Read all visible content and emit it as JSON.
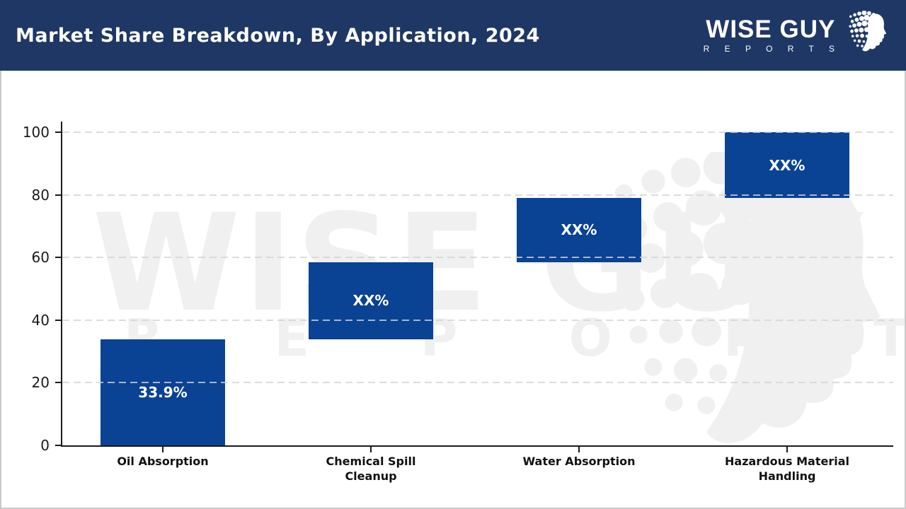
{
  "header": {
    "title": "Market Share Breakdown, By Application, 2024",
    "logo": {
      "line1": "WISE GUY",
      "line2": "R E P O R T S"
    }
  },
  "watermark": {
    "line1": "WISE GUY",
    "line2": "R E P O R T S"
  },
  "colors": {
    "header_bg": "#1f3764",
    "bar": "#0a4294",
    "grid": "#d3d3d3",
    "axis": "#1a1a1a",
    "watermark": "#f0f0f0",
    "bar_label": "#ffffff"
  },
  "chart_data": {
    "type": "bar",
    "variant": "floating-waterfall",
    "title": "Market Share Breakdown, By Application, 2024",
    "categories": [
      "Oil Absorption",
      "Chemical Spill\nCleanup",
      "Water Absorption",
      "Hazardous Material\nHandling"
    ],
    "segments": [
      {
        "category": "Oil Absorption",
        "start": 0,
        "end": 33.9,
        "label": "33.9%"
      },
      {
        "category": "Chemical Spill\nCleanup",
        "start": 33.9,
        "end": 58.5,
        "label": "XX%"
      },
      {
        "category": "Water Absorption",
        "start": 58.5,
        "end": 79,
        "label": "XX%"
      },
      {
        "category": "Hazardous Material\nHandling",
        "start": 79,
        "end": 100,
        "label": "XX%"
      }
    ],
    "yticks": [
      0,
      20,
      40,
      60,
      80,
      100
    ],
    "ylim": [
      0,
      103
    ],
    "xlabel": "",
    "ylabel": "",
    "grid": "horizontal-dashed",
    "legend": "none"
  }
}
